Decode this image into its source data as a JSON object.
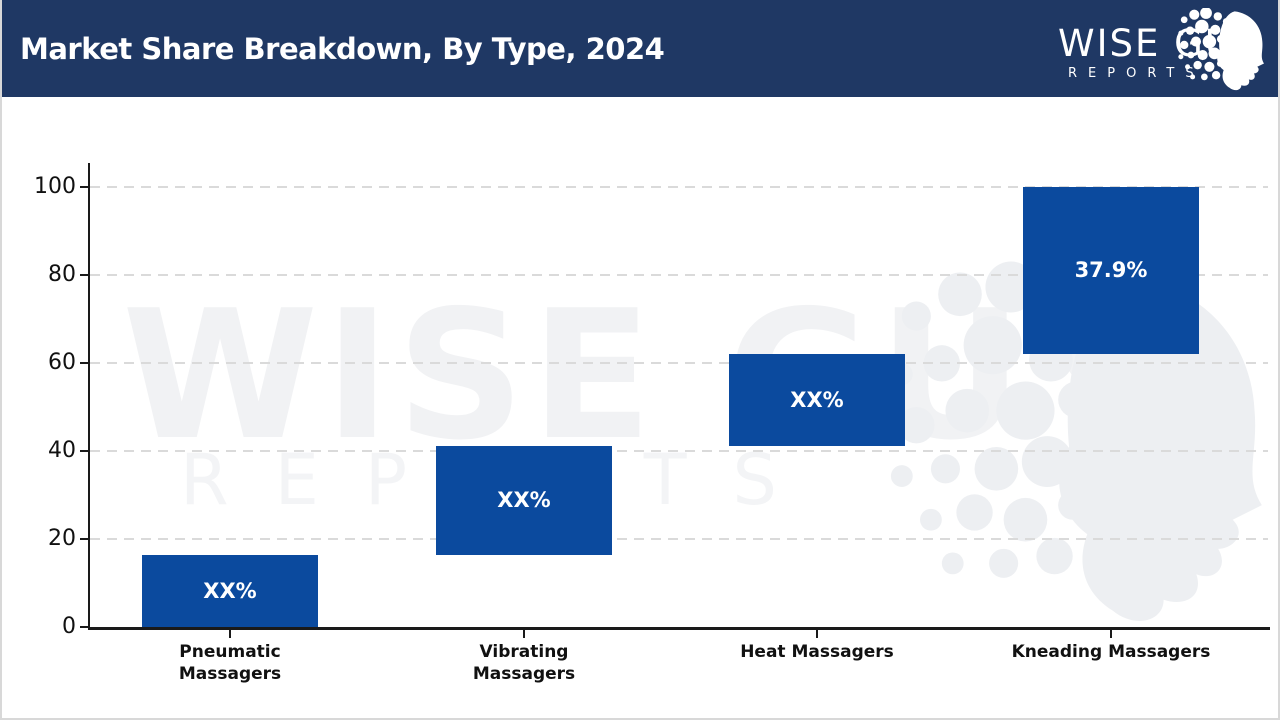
{
  "header": {
    "title": "Market Share Breakdown, By Type, 2024",
    "logo": {
      "wordmark": "WISE GUY",
      "subtitle": "REPORTS"
    }
  },
  "watermark": {
    "line1": "WISE GUY",
    "line2": "REPORTS"
  },
  "colors": {
    "header_bg": "#1F3864",
    "bar": "#0B4A9E",
    "grid": "#DADADA",
    "axis": "#1A1A1A",
    "bar_label": "#FFFFFF"
  },
  "chart_data": {
    "type": "bar",
    "subtype": "waterfall-floating-bars",
    "title": "Market Share Breakdown, By Type, 2024",
    "categories": [
      "Pneumatic Massagers",
      "Vibrating Massagers",
      "Heat Massagers",
      "Kneading Massagers"
    ],
    "category_label_lines": [
      [
        "Pneumatic",
        "Massagers"
      ],
      [
        "Vibrating",
        "Massagers"
      ],
      [
        "Heat Massagers"
      ],
      [
        "Kneading Massagers"
      ]
    ],
    "series": [
      {
        "name": "Market Share %",
        "segments": [
          {
            "category": "Pneumatic Massagers",
            "start": 0,
            "end": 16.4,
            "label": "XX%"
          },
          {
            "category": "Vibrating Massagers",
            "start": 16.4,
            "end": 41.2,
            "label": "XX%"
          },
          {
            "category": "Heat Massagers",
            "start": 41.2,
            "end": 62.1,
            "label": "XX%"
          },
          {
            "category": "Kneading Massagers",
            "start": 62.1,
            "end": 100,
            "label": "37.9%"
          }
        ]
      }
    ],
    "xlabel": "",
    "ylabel": "",
    "ylim": [
      0,
      100
    ],
    "yticks": [
      0,
      20,
      40,
      60,
      80,
      100
    ],
    "grid": "horizontal-dashed",
    "legend": "none"
  }
}
